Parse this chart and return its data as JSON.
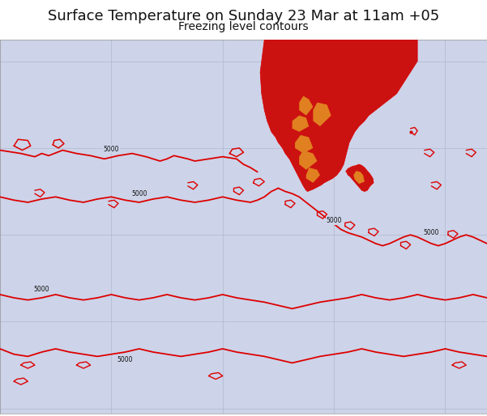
{
  "title": "Surface Temperature on Sunday 23 Mar at 11am +05",
  "subtitle": "Freezing level contours",
  "ocean_color": "#cdd3e8",
  "land_red": "#cc1111",
  "land_orange": "#e08020",
  "contour_color": "#dd0000",
  "grid_color": "#b0b8d0",
  "title_fontsize": 13,
  "subtitle_fontsize": 10,
  "fig_width": 6.01,
  "fig_height": 5.14,
  "dpi": 100,
  "xlim": [
    55.0,
    90.0
  ],
  "ylim": [
    -12.5,
    22.0
  ],
  "white": "#ffffff",
  "label_color": "#111111"
}
